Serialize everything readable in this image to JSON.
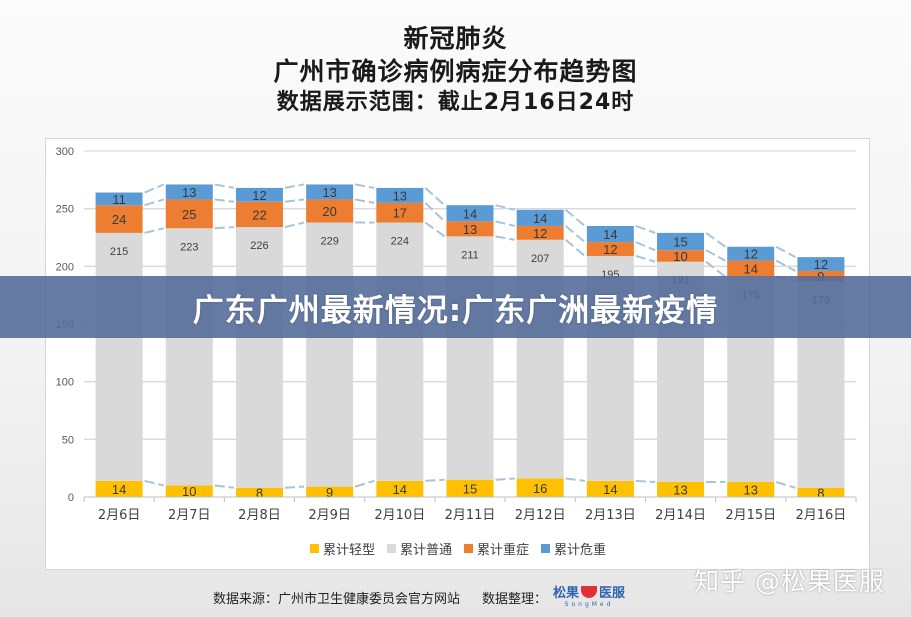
{
  "title": {
    "line1": "新冠肺炎",
    "line2": "广州市确诊病例病症分布趋势图",
    "line3": "数据展示范围：截止2月16日24时"
  },
  "banner": {
    "text": "广东广州最新情况:广东广洲最新疫情"
  },
  "footer": {
    "source": "数据来源：广州市卫生健康委员会官方网站",
    "organizer_label": "数据整理：",
    "logo_text_left": "松果",
    "logo_text_right": "医服",
    "logo_sub": "SongMed"
  },
  "watermark": "知乎 @松果医服",
  "colors": {
    "mild": "#ffc000",
    "common": "#d9d9d9",
    "severe": "#ed7d31",
    "critical": "#5b9bd5",
    "connector": "#a9c4d9",
    "grid": "#d9d9d9"
  },
  "chart_data": {
    "type": "bar",
    "stacked": true,
    "title": "广州市确诊病例病症分布趋势图",
    "xlabel": "",
    "ylabel": "",
    "ylim": [
      0,
      300
    ],
    "yticks": [
      0,
      50,
      100,
      150,
      200,
      250,
      300
    ],
    "grid": true,
    "legend_position": "bottom",
    "categories": [
      "2月6日",
      "2月7日",
      "2月8日",
      "2月9日",
      "2月10日",
      "2月11日",
      "2月12日",
      "2月13日",
      "2月14日",
      "2月15日",
      "2月16日"
    ],
    "series": [
      {
        "name": "累计轻型",
        "color": "#ffc000",
        "values": [
          14,
          10,
          8,
          9,
          14,
          15,
          16,
          14,
          13,
          13,
          8
        ]
      },
      {
        "name": "累计普通",
        "color": "#d9d9d9",
        "values": [
          215,
          223,
          226,
          229,
          224,
          211,
          207,
          195,
          191,
          178,
          179
        ]
      },
      {
        "name": "累计重症",
        "color": "#ed7d31",
        "values": [
          24,
          25,
          22,
          20,
          17,
          13,
          12,
          12,
          10,
          14,
          9
        ]
      },
      {
        "name": "累计危重",
        "color": "#5b9bd5",
        "values": [
          11,
          13,
          12,
          13,
          13,
          14,
          14,
          14,
          15,
          12,
          12
        ]
      }
    ]
  }
}
